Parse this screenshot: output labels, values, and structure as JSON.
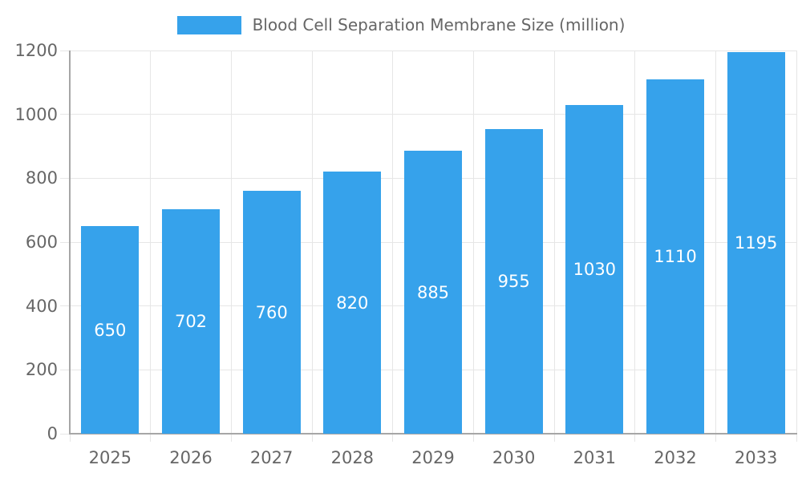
{
  "chart_data": {
    "type": "bar",
    "title": "Blood Cell Separation Membrane Size (million)",
    "categories": [
      "2025",
      "2026",
      "2027",
      "2028",
      "2029",
      "2030",
      "2031",
      "2032",
      "2033"
    ],
    "values": [
      650,
      702,
      760,
      820,
      885,
      955,
      1030,
      1110,
      1195
    ],
    "xlabel": "",
    "ylabel": "",
    "ylim": [
      0,
      1200
    ],
    "yticks": [
      0,
      200,
      400,
      600,
      800,
      1000,
      1200
    ],
    "legend_position": "top",
    "grid": true,
    "colors": {
      "bar": "#36A2EB",
      "value_label": "#ffffff",
      "axis_text": "#666666",
      "grid_line": "#e6e6e6",
      "axis_line": "#a6a6a6"
    }
  }
}
